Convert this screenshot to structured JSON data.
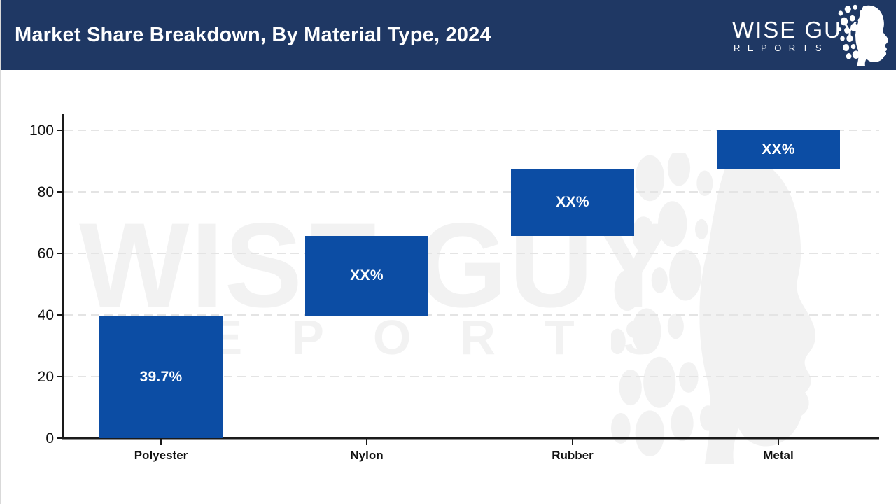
{
  "header": {
    "title": "Market Share Breakdown, By Material Type, 2024",
    "logo": {
      "line1": "WISE GUY",
      "line2": "REPORTS"
    }
  },
  "watermark": {
    "line1": "WISE GUY",
    "line2": "REPORTS"
  },
  "colors": {
    "header_bg": "#1F3864",
    "bar": "#0C4DA4",
    "bar_label": "#ffffff",
    "grid": "#e4e4e4",
    "axis": "#1a1a1a",
    "watermark": "#f2f2f2"
  },
  "chart_data": {
    "type": "waterfall",
    "title": "Market Share Breakdown, By Material Type, 2024",
    "categories": [
      "Polyester",
      "Nylon",
      "Rubber",
      "Metal"
    ],
    "segments": [
      {
        "category": "Polyester",
        "start": 0,
        "end": 39.7,
        "label": "39.7%"
      },
      {
        "category": "Nylon",
        "start": 39.7,
        "end": 65.7,
        "label": "XX%"
      },
      {
        "category": "Rubber",
        "start": 65.7,
        "end": 87.3,
        "label": "XX%"
      },
      {
        "category": "Metal",
        "start": 87.3,
        "end": 100,
        "label": "XX%"
      }
    ],
    "ylim": [
      0,
      100
    ],
    "yticks": [
      0,
      20,
      40,
      60,
      80,
      100
    ],
    "grid": "horizontal-dashed",
    "legend": "none",
    "bar_color": "#0C4DA4",
    "value_label_color": "#ffffff"
  }
}
